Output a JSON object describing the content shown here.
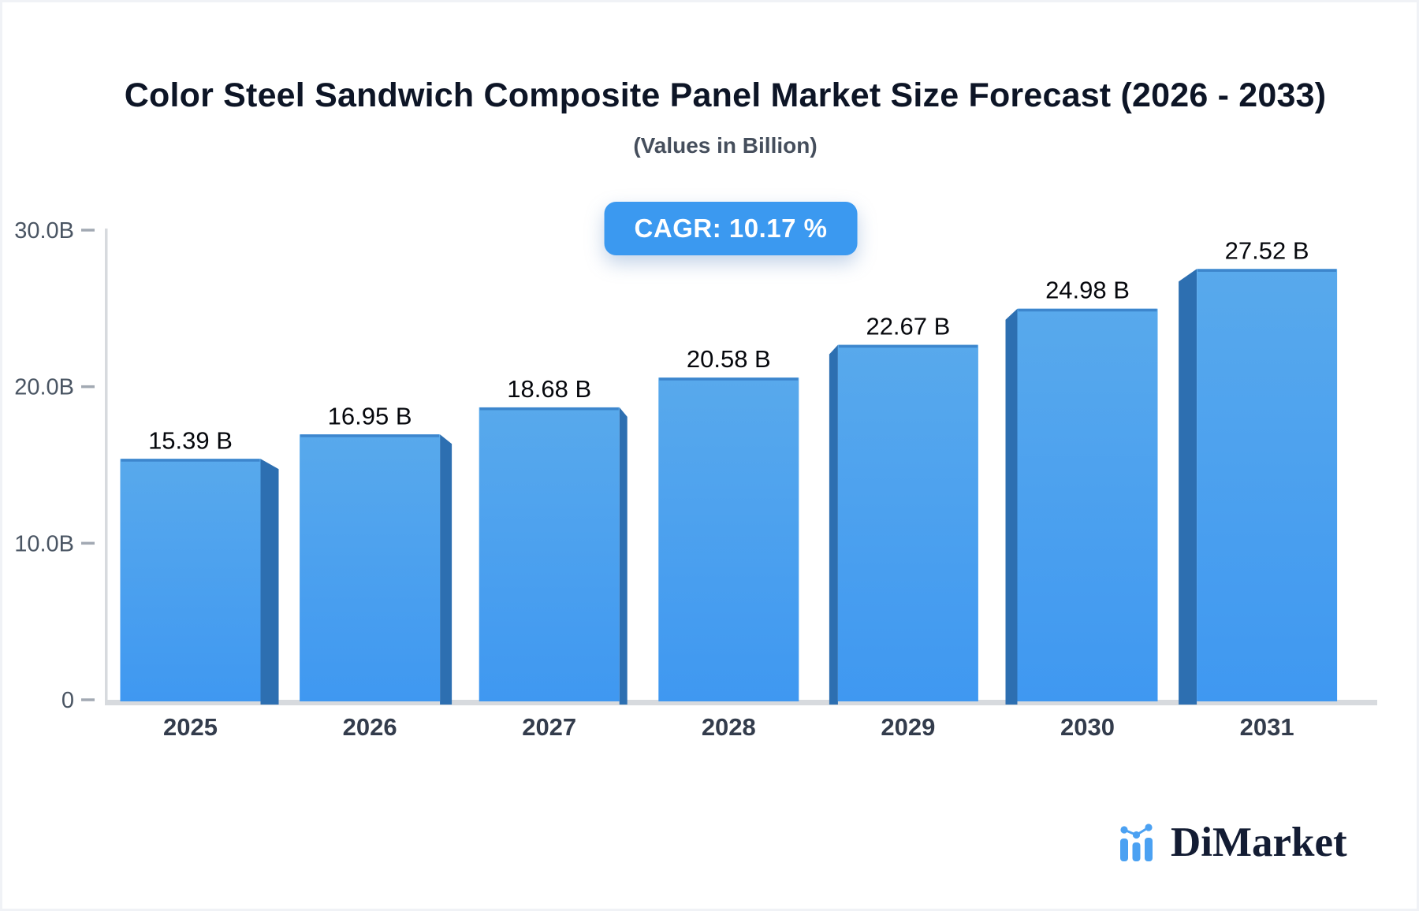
{
  "chart_data": {
    "type": "bar",
    "title": "Color Steel Sandwich Composite Panel Market Size Forecast (2026 - 2033)",
    "subtitle": "(Values in Billion)",
    "cagr_label": "CAGR: 10.17 %",
    "unit": "Billion",
    "categories": [
      "2025",
      "2026",
      "2027",
      "2028",
      "2029",
      "2030",
      "2031"
    ],
    "values": [
      15.39,
      16.95,
      18.68,
      20.58,
      22.67,
      24.98,
      27.52
    ],
    "value_labels": [
      "15.39 B",
      "16.95 B",
      "18.68 B",
      "20.58 B",
      "22.67 B",
      "24.98 B",
      "27.52 B"
    ],
    "ylim": [
      0,
      30
    ],
    "yticks": [
      {
        "value": 30,
        "label": "30.0B"
      },
      {
        "value": 20,
        "label": "20.0B"
      },
      {
        "value": 10,
        "label": "10.0B"
      },
      {
        "value": 0,
        "label": "0"
      }
    ],
    "grid": false,
    "legend": "none"
  },
  "logo": {
    "text": "DiMarket"
  },
  "colors": {
    "accent_blue": "#3b99f0",
    "badge_text": "#ffffff",
    "bar_top": "#58a9ec",
    "bar_bottom": "#3f98f1",
    "bar_side": "#2d6fb1",
    "bar_top_edge": "#3d86cd",
    "axis_line": "#d7dade",
    "tick": "#a2a9b3",
    "y_label": "#4a5563",
    "x_label": "#333c4c",
    "value_label": "#06080d",
    "title": "#0d1526",
    "subtitle": "#454e5c",
    "logo_text": "#131c33",
    "logo_icon": "#4ba1f2"
  }
}
